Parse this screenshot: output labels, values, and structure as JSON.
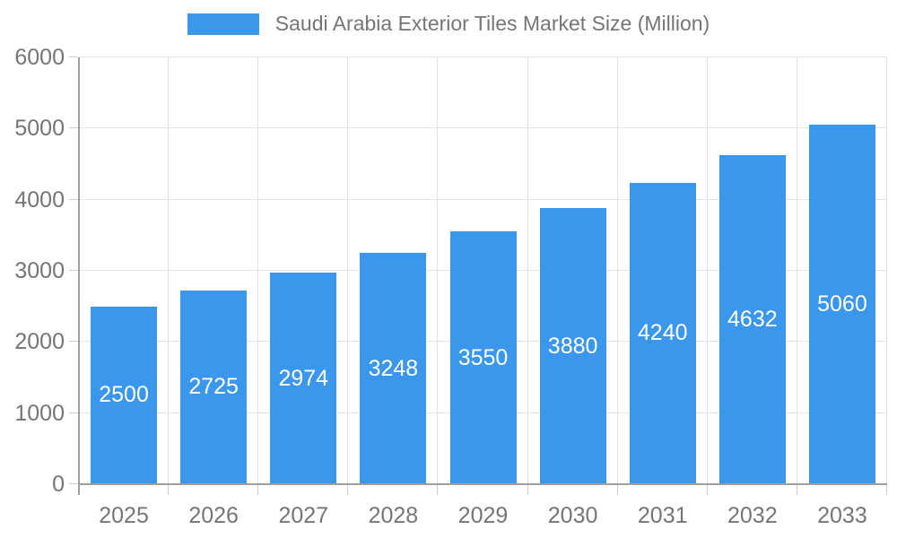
{
  "chart_data": {
    "type": "bar",
    "title": "Saudi Arabia Exterior Tiles Market Size (Million)",
    "categories": [
      "2025",
      "2026",
      "2027",
      "2028",
      "2029",
      "2030",
      "2031",
      "2032",
      "2033"
    ],
    "values": [
      2500,
      2725,
      2974,
      3248,
      3550,
      3880,
      4240,
      4632,
      5060
    ],
    "xlabel": "",
    "ylabel": "",
    "ylim": [
      0,
      6000
    ],
    "yticks": [
      0,
      1000,
      2000,
      3000,
      4000,
      5000,
      6000
    ],
    "grid": true,
    "legend_position": "top",
    "value_labels": "centered-inside-white"
  },
  "style": {
    "bar_color": "#3B97EC",
    "value_label_color": "#ffffff",
    "title_color": "#757575",
    "axis_label_color": "#757575",
    "grid_color": "#e3e3e3",
    "axis_line_color": "#9e9e9e",
    "tick_color": "#cccccc",
    "background": "#ffffff"
  }
}
